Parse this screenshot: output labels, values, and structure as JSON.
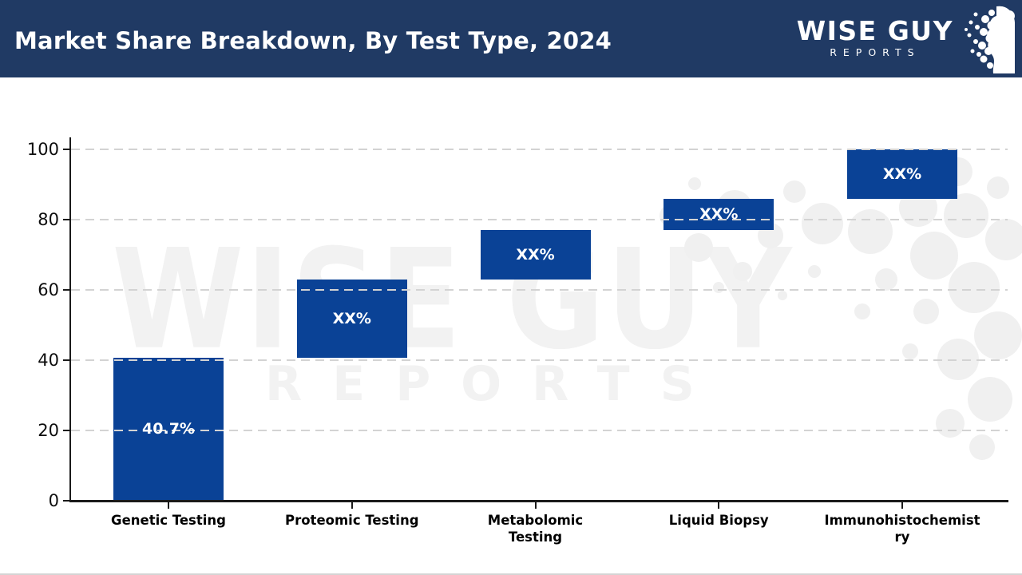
{
  "header": {
    "title": "Market Share Breakdown, By Test Type, 2024",
    "logo": {
      "line1": "WISE GUY",
      "line2": "REPORTS"
    }
  },
  "watermark": {
    "line1": "WISE GUY",
    "line2": "REPORTS"
  },
  "chart_data": {
    "type": "bar",
    "subtype": "waterfall",
    "title": "Market Share Breakdown, By Test Type, 2024",
    "categories": [
      "Genetic Testing",
      "Proteomic Testing",
      "Metabolomic Testing",
      "Liquid Biopsy",
      "Immunohistochemistry"
    ],
    "xtick_label_lines": [
      [
        "Genetic Testing"
      ],
      [
        "Proteomic Testing"
      ],
      [
        "Metabolomic",
        "Testing"
      ],
      [
        "Liquid Biopsy"
      ],
      [
        "Immunohistochemist",
        "ry"
      ]
    ],
    "segments": [
      {
        "category": "Genetic Testing",
        "start": 0,
        "end": 40.7,
        "label": "40.7%"
      },
      {
        "category": "Proteomic Testing",
        "start": 40.7,
        "end": 63,
        "label": "XX%"
      },
      {
        "category": "Metabolomic Testing",
        "start": 63,
        "end": 77,
        "label": "XX%"
      },
      {
        "category": "Liquid Biopsy",
        "start": 77,
        "end": 86,
        "label": "XX%"
      },
      {
        "category": "Immunohistochemistry",
        "start": 86,
        "end": 100,
        "label": "XX%"
      }
    ],
    "xlabel": "",
    "ylabel": "",
    "ylim": [
      0,
      100
    ],
    "yticks": [
      0,
      20,
      40,
      60,
      80,
      100
    ],
    "grid": "horizontal-dashed",
    "legend": "none",
    "colors": {
      "bar": "#0a4296",
      "bar_label": "#ffffff",
      "header_navy": "#203a64",
      "grid": "#d3d3d3",
      "axis": "#1a1a1a",
      "watermark": "#f2f2f2"
    }
  }
}
